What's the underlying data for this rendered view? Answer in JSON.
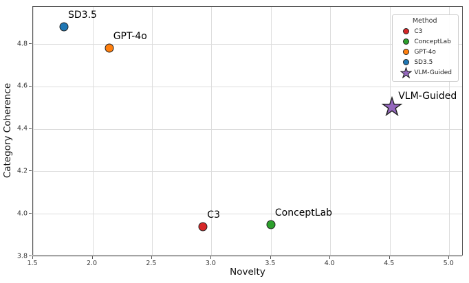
{
  "chart_data": {
    "type": "scatter",
    "title": "",
    "xlabel": "Novelty",
    "ylabel": "Category Coherence",
    "xlim": [
      1.5,
      5.12
    ],
    "ylim": [
      3.8,
      4.975
    ],
    "xticks": [
      1.5,
      2.0,
      2.5,
      3.0,
      3.5,
      4.0,
      4.5,
      5.0
    ],
    "yticks": [
      3.8,
      4.0,
      4.2,
      4.4,
      4.6,
      4.8
    ],
    "grid": true,
    "grid_color": "#dcdcdc",
    "marker_edge_color": "#222222",
    "legend": {
      "title": "Method",
      "position": "upper-right"
    },
    "series": [
      {
        "name": "C3",
        "x": 2.93,
        "y": 3.94,
        "marker": "circle",
        "color": "#d62728"
      },
      {
        "name": "ConceptLab",
        "x": 3.5,
        "y": 3.95,
        "marker": "circle",
        "color": "#2ca02c"
      },
      {
        "name": "GPT-4o",
        "x": 2.14,
        "y": 4.78,
        "marker": "circle",
        "color": "#ff7f0e"
      },
      {
        "name": "SD3.5",
        "x": 1.76,
        "y": 4.88,
        "marker": "circle",
        "color": "#1f77b4"
      },
      {
        "name": "VLM-Guided",
        "x": 4.52,
        "y": 4.5,
        "marker": "star",
        "color": "#9467bd"
      }
    ]
  }
}
